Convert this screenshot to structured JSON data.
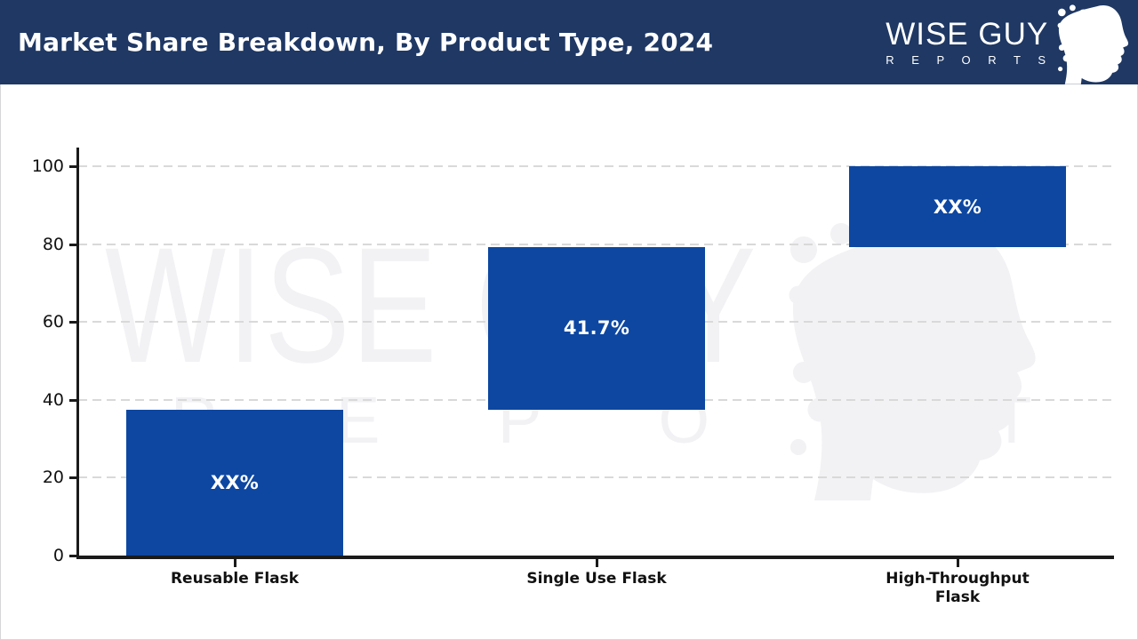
{
  "header": {
    "title": "Market Share Breakdown, By Product Type, 2024",
    "logo": {
      "wordmark": "WISE GUY",
      "subtext": "R E P O R T S"
    }
  },
  "watermark": {
    "wordmark": "WISE GUY",
    "subtext": "R E P O R T S"
  },
  "chart_data": {
    "type": "bar",
    "variant": "floating-stacked-percentage",
    "title": "Market Share Breakdown, By Product Type, 2024",
    "categories": [
      "Reusable Flask",
      "Single Use Flask",
      "High-Throughput Flask"
    ],
    "bars": [
      {
        "category": "Reusable Flask",
        "label": "XX%",
        "base": 0,
        "top": 37.5
      },
      {
        "category": "Single Use Flask",
        "label": "41.7%",
        "base": 37.5,
        "top": 79.2
      },
      {
        "category": "High-Throughput Flask",
        "label": "XX%",
        "base": 79.2,
        "top": 100
      }
    ],
    "xlabel": "",
    "ylabel": "",
    "ylim": [
      0,
      100
    ],
    "yticks": [
      0,
      20,
      40,
      60,
      80,
      100
    ],
    "grid": {
      "horizontal": true,
      "style": "dashed"
    },
    "legend_position": "none"
  },
  "colors": {
    "header_bg": "#1f3864",
    "bar": "#0d47a1",
    "bar_label": "#ffffff",
    "grid": "#d9d9d9",
    "axis": "#1a1a1a",
    "watermark": "#f2f2f5",
    "page_bg": "#ffffff"
  }
}
